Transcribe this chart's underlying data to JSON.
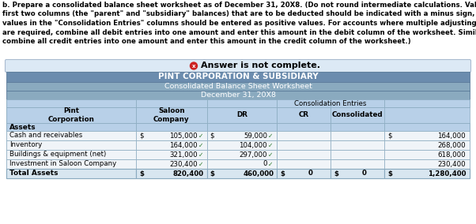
{
  "instruction_line1": "b. Prepare a consolidated balance sheet worksheet as of December 31, 20X8. (Do not round intermediate calculations. Values in the",
  "instruction_line2": "first two columns (the \"parent\" and \"subsidiary\" balances) that are to be deducted should be indicated with a minus sign, while all",
  "instruction_line3": "values in the \"Consolidation Entries\" columns should be entered as positive values. For accounts where multiple adjusting entries",
  "instruction_line4": "are required, combine all debit entries into one amount and enter this amount in the debit column of the worksheet. Similarly,",
  "instruction_line5": "combine all credit entries into one amount and enter this amount in the credit column of the worksheet.)",
  "answer_banner": "Answer is not complete.",
  "company_name": "PINT CORPORATION & SUBSIDIARY",
  "worksheet_title": "Consolidated Balance Sheet Worksheet",
  "date": "December 31, 20X8",
  "consolidation_entries_label": "Consolidation Entries",
  "col_headers": [
    "Pint\nCorporation",
    "Saloon\nCompany",
    "DR",
    "CR",
    "Consolidated"
  ],
  "section_label": "Assets",
  "rows": [
    {
      "label": "Cash and receivables",
      "pint": "105,000",
      "saloon": "59,000",
      "dr": "",
      "cr": "",
      "consolidated": "164,000",
      "pint_dollar": true,
      "saloon_dollar": true,
      "consol_dollar": true,
      "pint_check": true,
      "saloon_check": true
    },
    {
      "label": "Inventory",
      "pint": "164,000",
      "saloon": "104,000",
      "dr": "",
      "cr": "",
      "consolidated": "268,000",
      "pint_dollar": false,
      "saloon_dollar": false,
      "consol_dollar": false,
      "pint_check": true,
      "saloon_check": true
    },
    {
      "label": "Buildings & equipment (net)",
      "pint": "321,000",
      "saloon": "297,000",
      "dr": "",
      "cr": "",
      "consolidated": "618,000",
      "pint_dollar": false,
      "saloon_dollar": false,
      "consol_dollar": false,
      "pint_check": true,
      "saloon_check": true
    },
    {
      "label": "Investment in Saloon Company",
      "pint": "230,400",
      "saloon": "0",
      "dr": "",
      "cr": "",
      "consolidated": "230,400",
      "pint_dollar": false,
      "saloon_dollar": false,
      "consol_dollar": false,
      "pint_check": true,
      "saloon_check": true
    }
  ],
  "total_row": {
    "label": "Total Assets",
    "pint": "820,400",
    "saloon": "460,000",
    "dr": "0",
    "cr": "0",
    "consolidated": "1,280,400"
  },
  "bg_white": "#ffffff",
  "bg_banner": "#dce9f5",
  "bg_table_header_dark": "#6b8cae",
  "bg_table_header_mid": "#8aaabf",
  "bg_col_header": "#b8d0e8",
  "bg_assets_row": "#d8e6f0",
  "bg_data_row": "#f0f4f8",
  "bg_total_row": "#d8e6f0",
  "border_color": "#8aaabf",
  "check_green": "#2d7a2d",
  "icon_red": "#cc2222",
  "text_black": "#000000",
  "text_white": "#ffffff",
  "text_red_bold": "#cc0000"
}
